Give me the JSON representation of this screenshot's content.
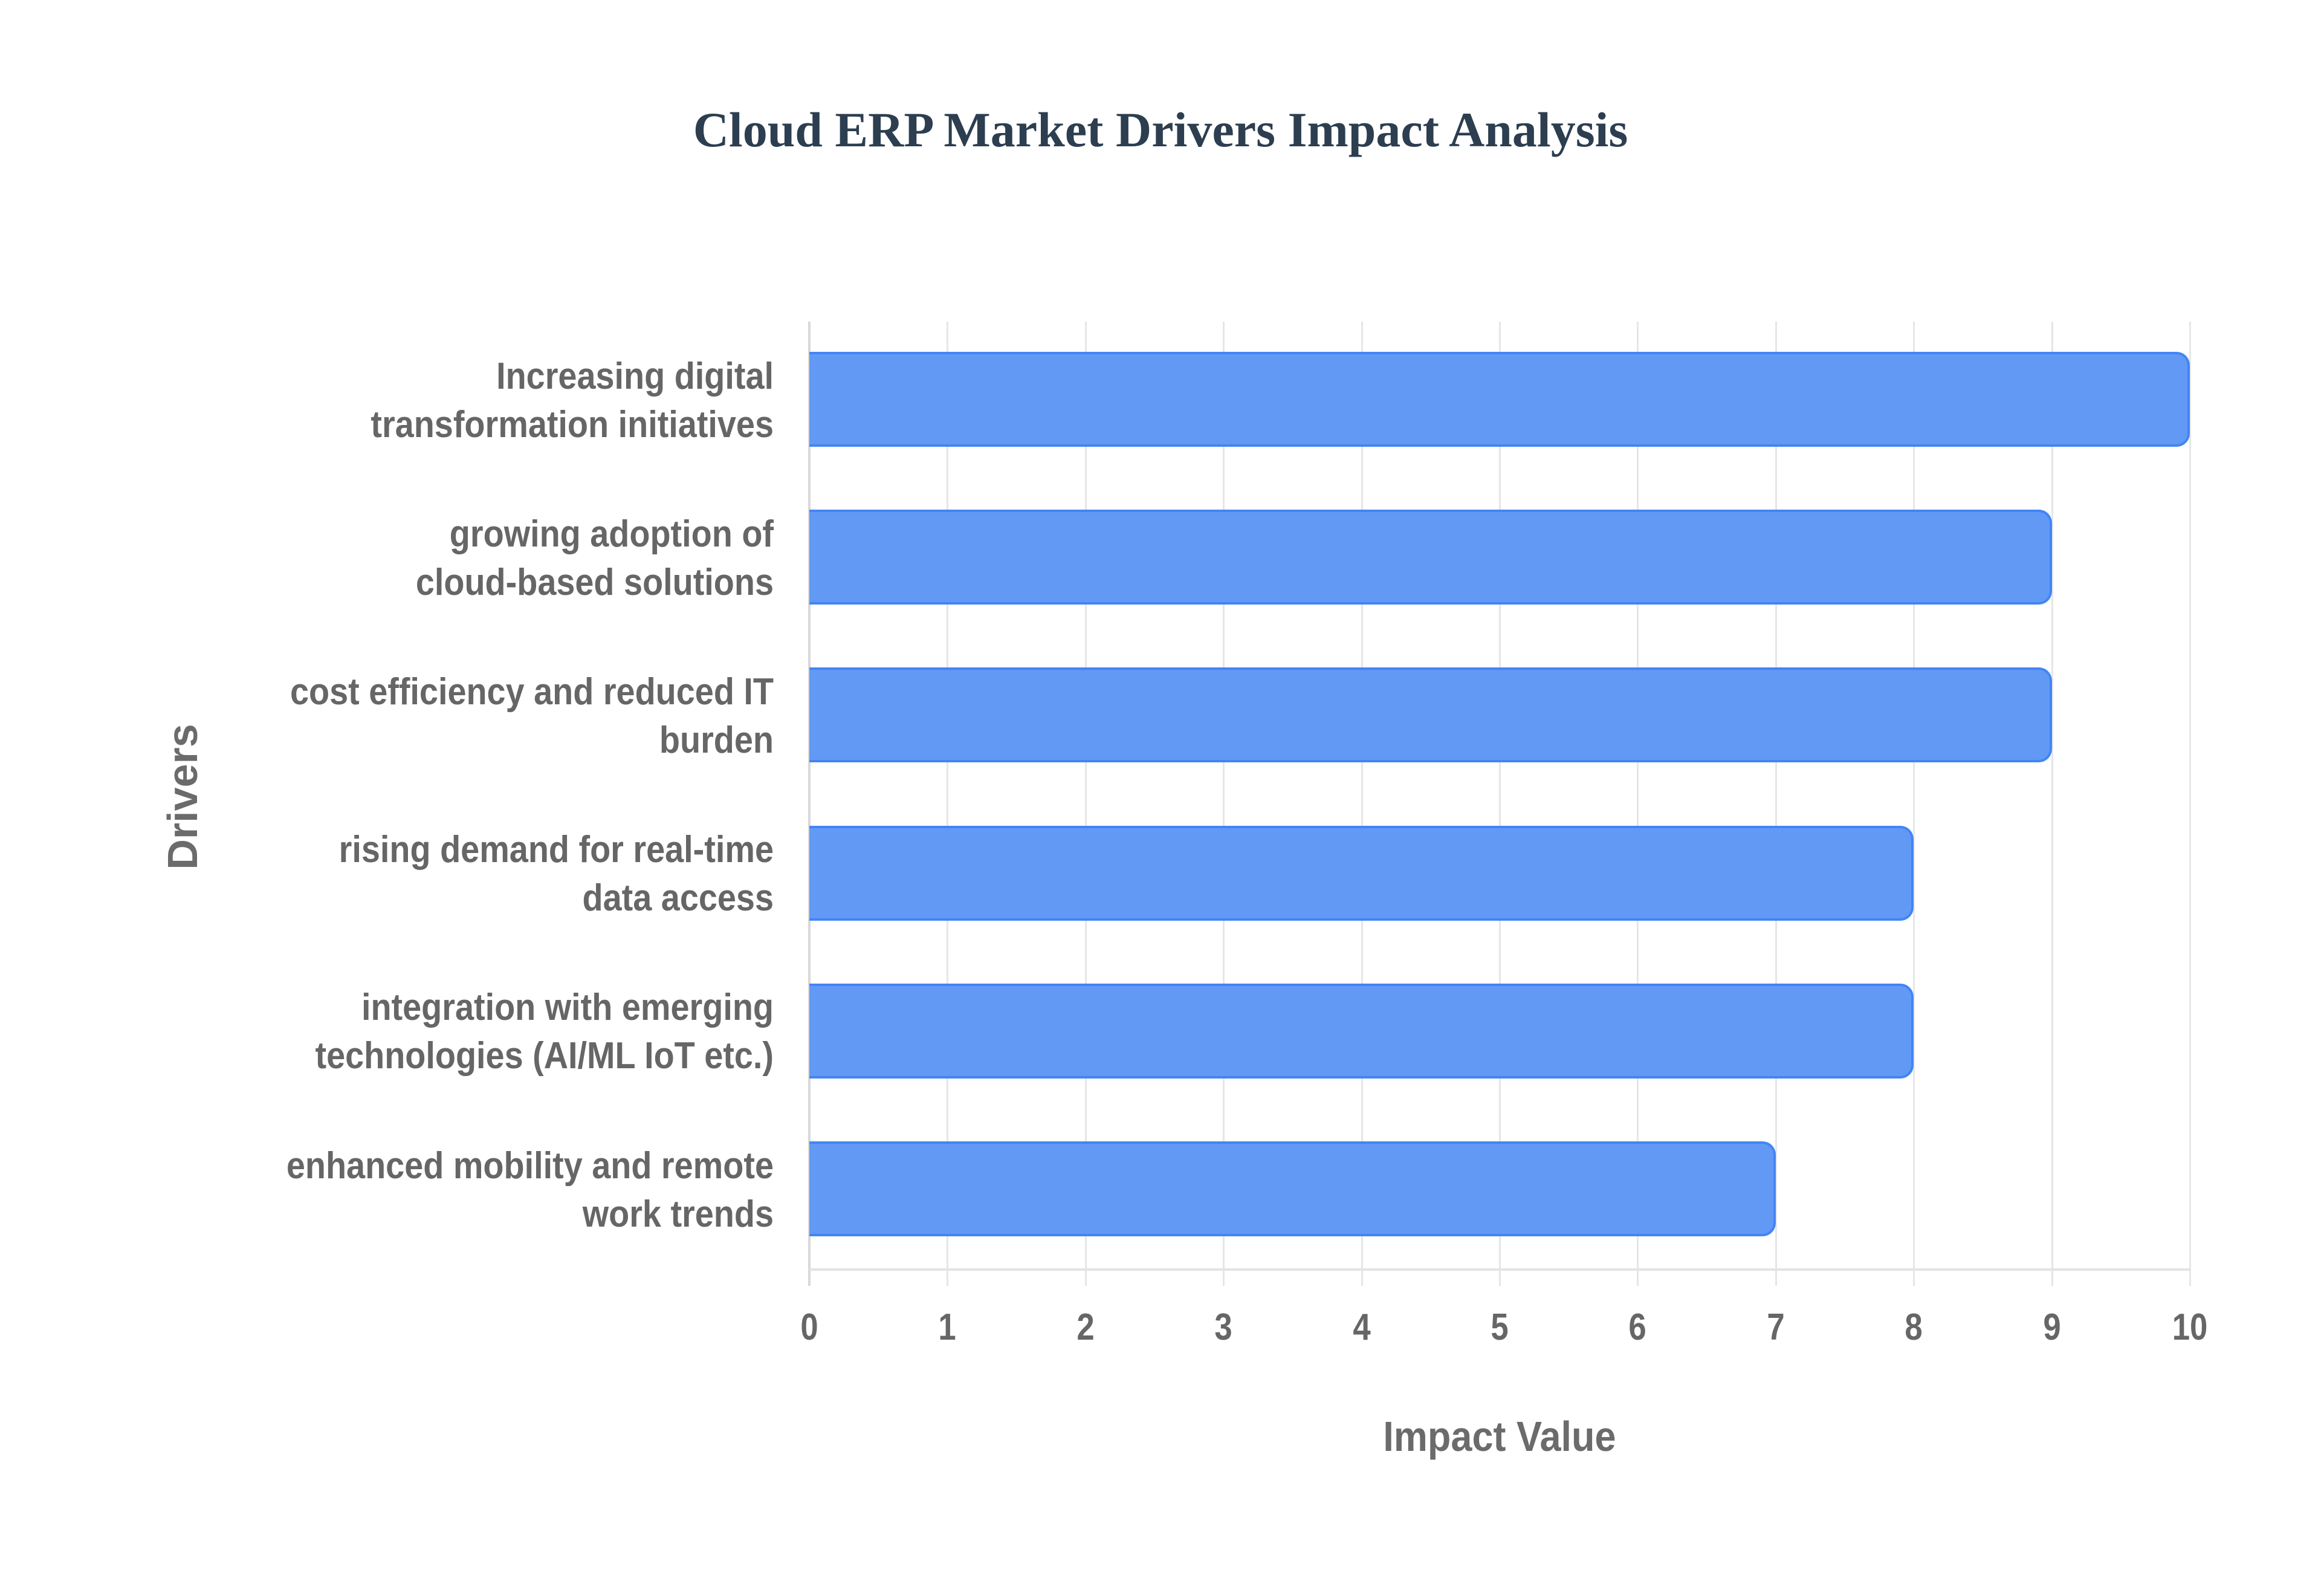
{
  "title": "Cloud ERP Market Drivers Impact Analysis",
  "colors": {
    "title": "#2c3e50",
    "bar_fill": "#6299f5",
    "bar_border": "#4285f4",
    "axis_text": "#666666",
    "gridline": "#e6e6e6"
  },
  "axes": {
    "x_title": "Impact Value",
    "y_title": "Drivers",
    "x_ticks": [
      "0",
      "1",
      "2",
      "3",
      "4",
      "5",
      "6",
      "7",
      "8",
      "9",
      "10"
    ]
  },
  "categories": [
    {
      "line1": "Increasing digital",
      "line2": "transformation initiatives",
      "value": 10
    },
    {
      "line1": "growing adoption of",
      "line2": "cloud-based solutions",
      "value": 9
    },
    {
      "line1": "cost efficiency and reduced IT",
      "line2": "burden",
      "value": 9
    },
    {
      "line1": "rising demand for real-time",
      "line2": "data access",
      "value": 8
    },
    {
      "line1": "integration with emerging",
      "line2": "technologies (AI/ML IoT etc.)",
      "value": 8
    },
    {
      "line1": "enhanced mobility and remote",
      "line2": "work trends",
      "value": 7
    }
  ],
  "chart_data": {
    "type": "bar",
    "orientation": "horizontal",
    "title": "Cloud ERP Market Drivers Impact Analysis",
    "xlabel": "Impact Value",
    "ylabel": "Drivers",
    "categories": [
      "Increasing digital transformation initiatives",
      "growing adoption of cloud-based solutions",
      "cost efficiency and reduced IT burden",
      "rising demand for real-time data access",
      "integration with emerging technologies (AI/ML IoT etc.)",
      "enhanced mobility and remote work trends"
    ],
    "values": [
      10,
      9,
      9,
      8,
      8,
      7
    ],
    "xlim": [
      0,
      10
    ],
    "x_ticks": [
      0,
      1,
      2,
      3,
      4,
      5,
      6,
      7,
      8,
      9,
      10
    ],
    "grid": true,
    "legend": false,
    "bar_color": "#6299f5"
  }
}
